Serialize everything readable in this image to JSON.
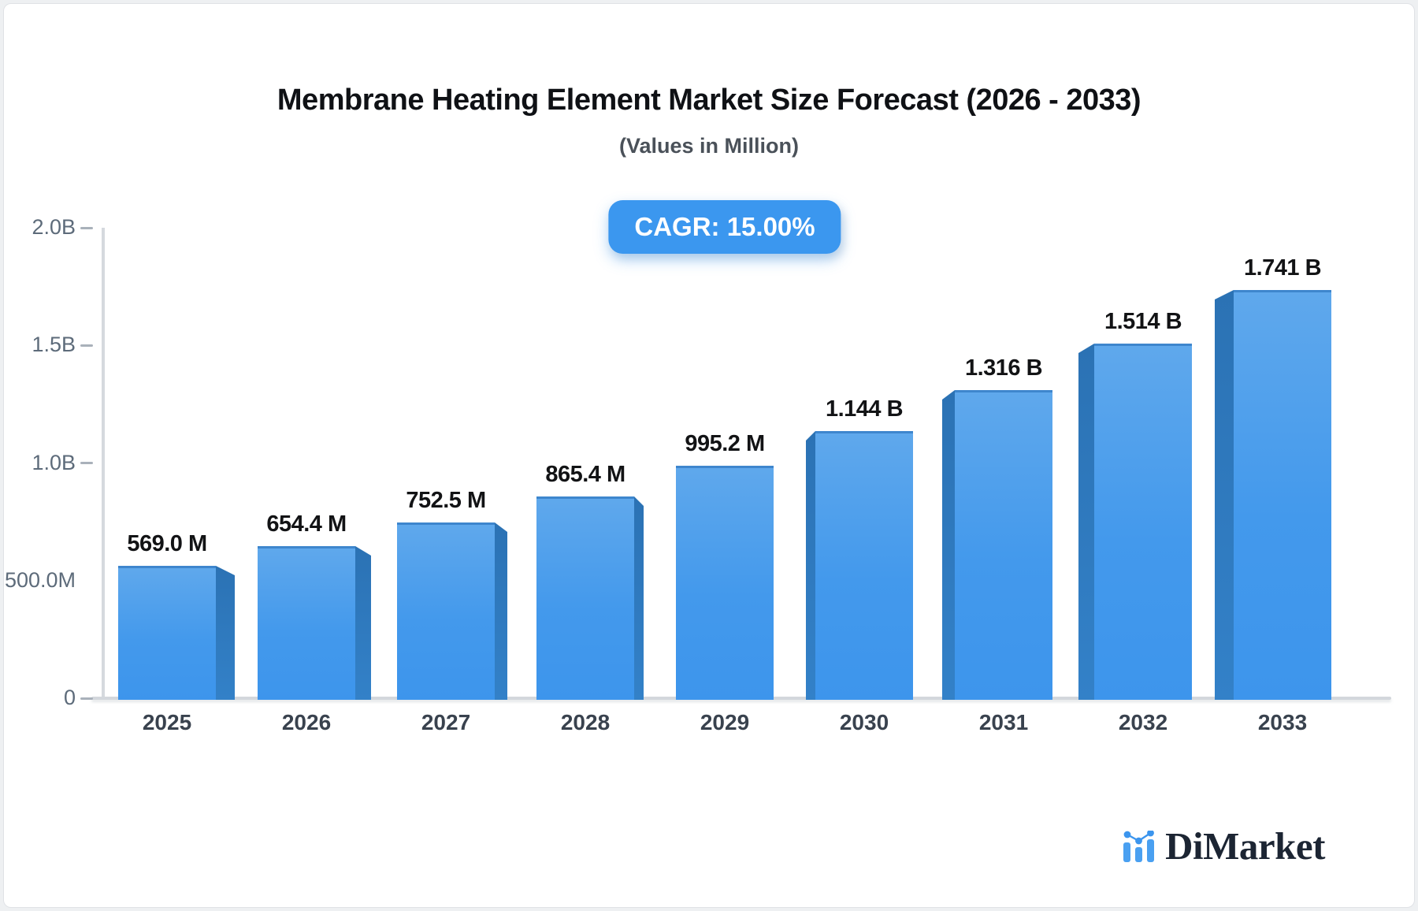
{
  "title": "Membrane Heating Element Market Size Forecast (2026 - 2033)",
  "subtitle": "(Values in Million)",
  "badge": {
    "label": "CAGR: 15.00%",
    "bg": "#3b97ef"
  },
  "brand": {
    "name": "DiMarket",
    "icon": "bar-line-chart-icon",
    "accent": "#4aa0f1"
  },
  "chart_data": {
    "type": "bar",
    "title": "Membrane Heating Element Market Size Forecast (2026 - 2033)",
    "subtitle": "(Values in Million)",
    "cagr_percent": 15.0,
    "categories": [
      "2025",
      "2026",
      "2027",
      "2028",
      "2029",
      "2030",
      "2031",
      "2032",
      "2033"
    ],
    "values_millions": [
      569.0,
      654.4,
      752.5,
      865.4,
      995.2,
      1144,
      1316,
      1514,
      1741
    ],
    "value_labels": [
      "569.0 M",
      "654.4 M",
      "752.5 M",
      "865.4 M",
      "995.2 M",
      "1.144 B",
      "1.316 B",
      "1.514 B",
      "1.741 B"
    ],
    "ylim_millions": [
      0,
      2000
    ],
    "yticks": [
      {
        "label": "2.0B",
        "value_m": 2000,
        "dash": true
      },
      {
        "label": "1.5B",
        "value_m": 1500,
        "dash": true
      },
      {
        "label": "1.0B",
        "value_m": 1000,
        "dash": true
      },
      {
        "label": "500.0M",
        "value_m": 500,
        "dash": false
      },
      {
        "label": "0",
        "value_m": 0,
        "dash": true
      }
    ],
    "grid": false,
    "legend": "none",
    "bar_color": "#4399ec",
    "bar_side_color": "#2e77bb",
    "xlabel": "",
    "ylabel": ""
  }
}
